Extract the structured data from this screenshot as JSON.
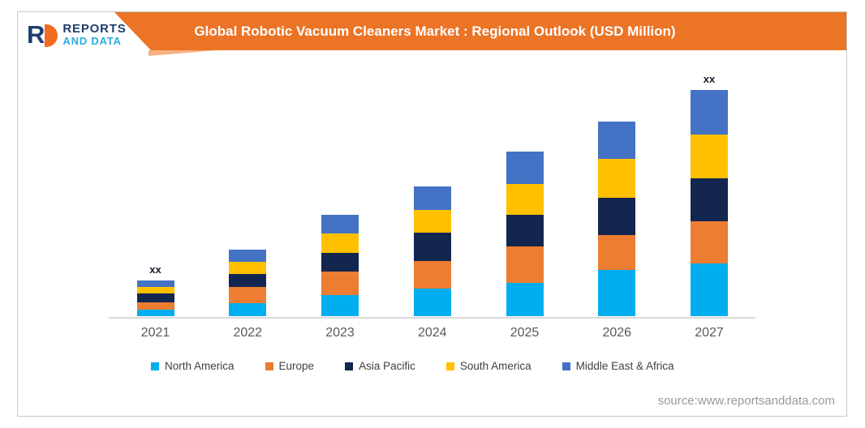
{
  "logo": {
    "monogram_r": "R",
    "line1": "REPORTS",
    "line2": "AND DATA",
    "colors": {
      "navy": "#1d3e6e",
      "orange": "#f26b21",
      "light_blue": "#29abe2"
    }
  },
  "banner": {
    "title": "Global Robotic Vacuum Cleaners Market : Regional Outlook (USD Million)",
    "color": "#eb7426",
    "fold_color": "#f5b183"
  },
  "chart_data": {
    "type": "bar",
    "stacked": true,
    "title": "Global Robotic Vacuum Cleaners Market : Regional Outlook (USD Million)",
    "categories": [
      "2021",
      "2022",
      "2023",
      "2024",
      "2025",
      "2026",
      "2027"
    ],
    "series": [
      {
        "name": "North America",
        "color": "#00aeef",
        "values": [
          8,
          16,
          26,
          34,
          41,
          57,
          65
        ]
      },
      {
        "name": "Europe",
        "color": "#ed7d31",
        "values": [
          9,
          20,
          29,
          34,
          45,
          43,
          52
        ]
      },
      {
        "name": "Asia Pacific",
        "color": "#13264f",
        "values": [
          11,
          16,
          23,
          35,
          39,
          46,
          53
        ]
      },
      {
        "name": "South America",
        "color": "#ffc000",
        "values": [
          8,
          15,
          24,
          28,
          38,
          48,
          54
        ]
      },
      {
        "name": "Middle East & Africa",
        "color": "#4472c4",
        "values": [
          8,
          15,
          23,
          29,
          40,
          46,
          55
        ]
      }
    ],
    "bar_value_labels": [
      "xx",
      "",
      "",
      "",
      "",
      "",
      "xx"
    ],
    "values_note": "actual figures are masked as 'xx' in the chart; series values are relative heights estimated from pixels",
    "xlabel": "",
    "ylabel": "",
    "y_axis_visible": false,
    "gridlines": false,
    "legend_position": "bottom",
    "axis_line_color": "#d9d9d9",
    "tick_label_color": "#595959",
    "value_label_color": "#1a1a2e",
    "legend_text_color": "#404040"
  },
  "footer": {
    "source": "source:www.reportsanddata.com",
    "color": "#999999"
  }
}
